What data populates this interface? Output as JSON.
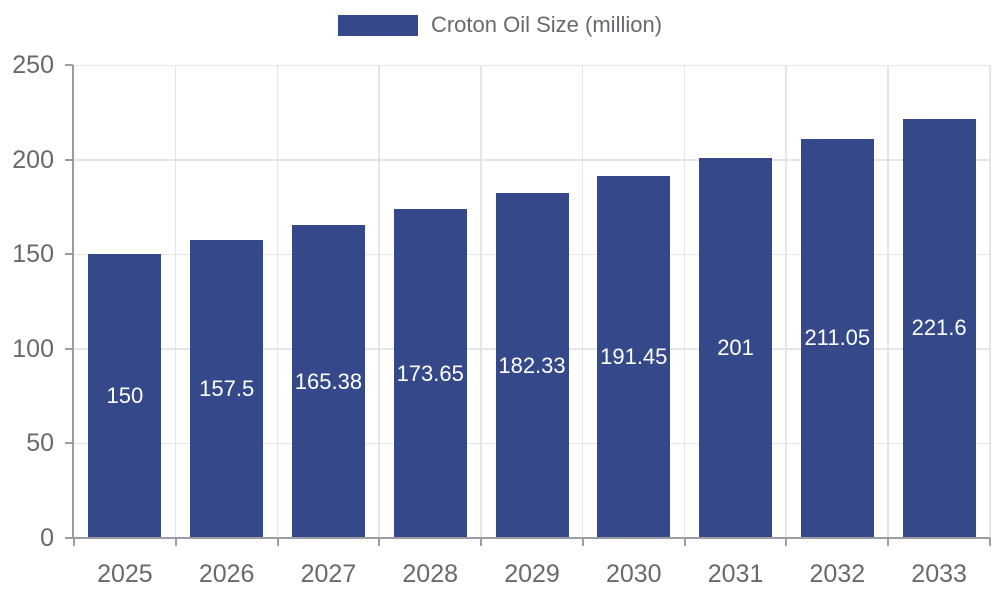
{
  "legend": {
    "label": "Croton Oil Size (million)"
  },
  "colors": {
    "background": "#ffffff",
    "bar": "#35488A",
    "value_label": "#ffffff",
    "axis_text": "#67696F",
    "legend_text": "#67696F",
    "axis_line": "#9A9DA3",
    "gridline": "#E4E4E9"
  },
  "chart_data": {
    "type": "bar",
    "title": "",
    "categories": [
      "2025",
      "2026",
      "2027",
      "2028",
      "2029",
      "2030",
      "2031",
      "2032",
      "2033"
    ],
    "series": [
      {
        "name": "Croton Oil Size (million)",
        "values": [
          150,
          157.5,
          165.38,
          173.65,
          182.33,
          191.45,
          201,
          211.05,
          221.6
        ],
        "value_labels": [
          "150",
          "157.5",
          "165.38",
          "173.65",
          "182.33",
          "191.45",
          "201",
          "211.05",
          "221.6"
        ]
      }
    ],
    "xlabel": "",
    "ylabel": "",
    "ylim": [
      0,
      250
    ],
    "y_ticks": [
      0,
      50,
      100,
      150,
      200,
      250
    ],
    "y_tick_labels": [
      "0",
      "50",
      "100",
      "150",
      "200",
      "250"
    ],
    "grid": true,
    "legend_position": "top",
    "value_label_position": "inside-center"
  }
}
